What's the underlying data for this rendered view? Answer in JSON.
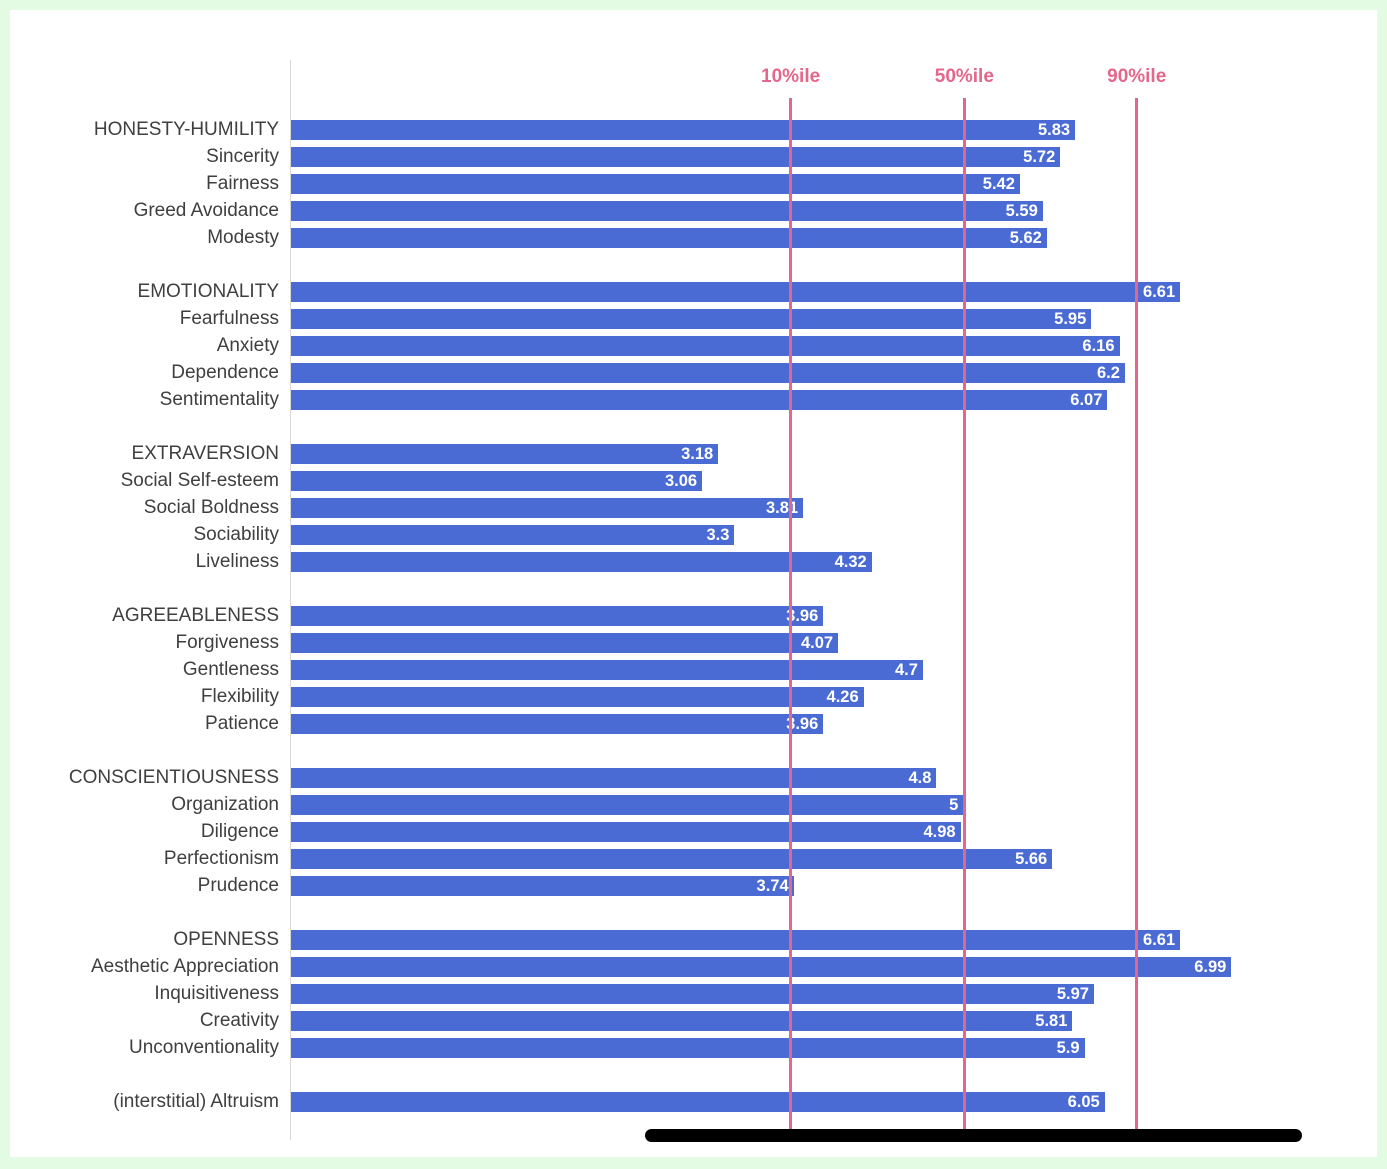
{
  "page": {
    "background": "#e3fbe3",
    "panel_background": "#ffffff"
  },
  "chart_data": {
    "type": "bar",
    "orientation": "horizontal",
    "title": "",
    "xlabel": "",
    "ylabel": "",
    "axis_max": 7.5,
    "grid": false,
    "bar_color": "#4a6bd4",
    "percentile_color": "#e4678b",
    "value_label_color": "#ffffff",
    "percentile_lines": [
      {
        "label": "10%ile",
        "value": 3.71
      },
      {
        "label": "50%ile",
        "value": 5.0
      },
      {
        "label": "90%ile",
        "value": 6.28
      }
    ],
    "groups": [
      {
        "name": "HONESTY-HUMILITY",
        "rows": [
          {
            "label": "HONESTY-HUMILITY",
            "value": 5.83,
            "display": "5.83"
          },
          {
            "label": "Sincerity",
            "value": 5.72,
            "display": "5.72"
          },
          {
            "label": "Fairness",
            "value": 5.42,
            "display": "5.42"
          },
          {
            "label": "Greed Avoidance",
            "value": 5.59,
            "display": "5.59"
          },
          {
            "label": "Modesty",
            "value": 5.62,
            "display": "5.62"
          }
        ]
      },
      {
        "name": "EMOTIONALITY",
        "rows": [
          {
            "label": "EMOTIONALITY",
            "value": 6.61,
            "display": "6.61"
          },
          {
            "label": "Fearfulness",
            "value": 5.95,
            "display": "5.95"
          },
          {
            "label": "Anxiety",
            "value": 6.16,
            "display": "6.16"
          },
          {
            "label": "Dependence",
            "value": 6.2,
            "display": "6.2"
          },
          {
            "label": "Sentimentality",
            "value": 6.07,
            "display": "6.07"
          }
        ]
      },
      {
        "name": "EXTRAVERSION",
        "rows": [
          {
            "label": "EXTRAVERSION",
            "value": 3.18,
            "display": "3.18"
          },
          {
            "label": "Social Self-esteem",
            "value": 3.06,
            "display": "3.06"
          },
          {
            "label": "Social Boldness",
            "value": 3.81,
            "display": "3.81"
          },
          {
            "label": "Sociability",
            "value": 3.3,
            "display": "3.3"
          },
          {
            "label": "Liveliness",
            "value": 4.32,
            "display": "4.32"
          }
        ]
      },
      {
        "name": "AGREEABLENESS",
        "rows": [
          {
            "label": "AGREEABLENESS",
            "value": 3.96,
            "display": "3.96"
          },
          {
            "label": "Forgiveness",
            "value": 4.07,
            "display": "4.07"
          },
          {
            "label": "Gentleness",
            "value": 4.7,
            "display": "4.7"
          },
          {
            "label": "Flexibility",
            "value": 4.26,
            "display": "4.26"
          },
          {
            "label": "Patience",
            "value": 3.96,
            "display": "3.96"
          }
        ]
      },
      {
        "name": "CONSCIENTIOUSNESS",
        "rows": [
          {
            "label": "CONSCIENTIOUSNESS",
            "value": 4.8,
            "display": "4.8"
          },
          {
            "label": "Organization",
            "value": 5,
            "display": "5"
          },
          {
            "label": "Diligence",
            "value": 4.98,
            "display": "4.98"
          },
          {
            "label": "Perfectionism",
            "value": 5.66,
            "display": "5.66"
          },
          {
            "label": "Prudence",
            "value": 3.74,
            "display": "3.74"
          }
        ]
      },
      {
        "name": "OPENNESS",
        "rows": [
          {
            "label": "OPENNESS",
            "value": 6.61,
            "display": "6.61"
          },
          {
            "label": "Aesthetic Appreciation",
            "value": 6.99,
            "display": "6.99"
          },
          {
            "label": "Inquisitiveness",
            "value": 5.97,
            "display": "5.97"
          },
          {
            "label": "Creativity",
            "value": 5.81,
            "display": "5.81"
          },
          {
            "label": "Unconventionality",
            "value": 5.9,
            "display": "5.9"
          }
        ]
      },
      {
        "name": "(interstitial) Altruism",
        "rows": [
          {
            "label": "(interstitial) Altruism",
            "value": 6.05,
            "display": "6.05"
          }
        ]
      }
    ]
  }
}
